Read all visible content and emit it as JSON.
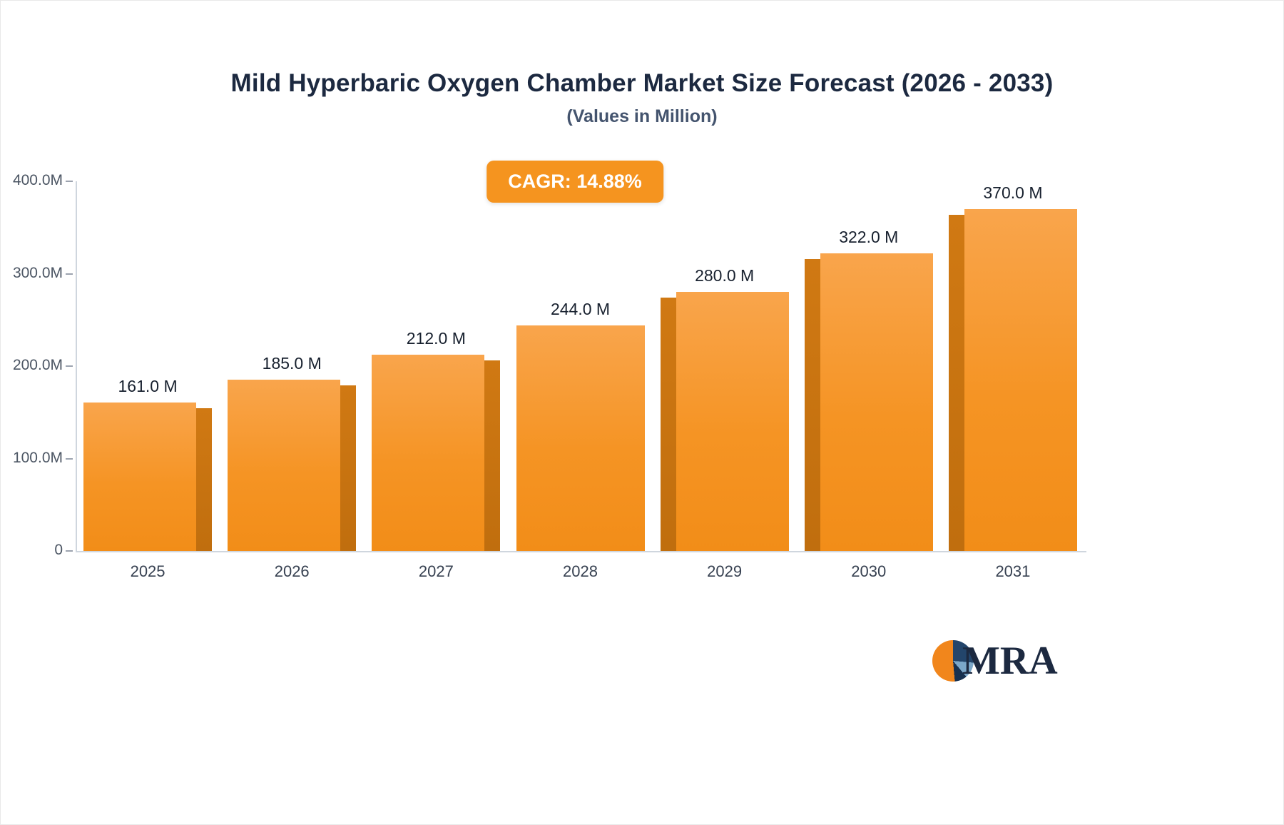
{
  "header": {
    "title": "Mild Hyperbaric Oxygen Chamber Market Size Forecast (2026 - 2033)",
    "subtitle": "(Values in Million)",
    "cagr_badge": "CAGR: 14.88%"
  },
  "logo": {
    "text": "MRA"
  },
  "colors": {
    "bar": "#f59424",
    "bar_side": "#c06e0e",
    "badge": "#f5941f",
    "title_text": "#1c2940"
  },
  "chart_data": {
    "type": "bar",
    "title": "Mild Hyperbaric Oxygen Chamber Market Size Forecast (2026 - 2033)",
    "subtitle": "(Values in Million)",
    "categories": [
      "2025",
      "2026",
      "2027",
      "2028",
      "2029",
      "2030",
      "2031"
    ],
    "values": [
      161,
      185,
      212,
      244,
      280,
      322,
      370
    ],
    "value_labels": [
      "161.0 M",
      "185.0 M",
      "212.0 M",
      "244.0 M",
      "280.0 M",
      "322.0 M",
      "370.0 M"
    ],
    "y_ticks": [
      "400.0M",
      "300.0M",
      "200.0M",
      "100.0M",
      "0"
    ],
    "xlabel": "",
    "ylabel": "",
    "ylim": [
      0,
      400
    ],
    "grid": false,
    "legend": false,
    "annotation": "CAGR: 14.88%"
  }
}
